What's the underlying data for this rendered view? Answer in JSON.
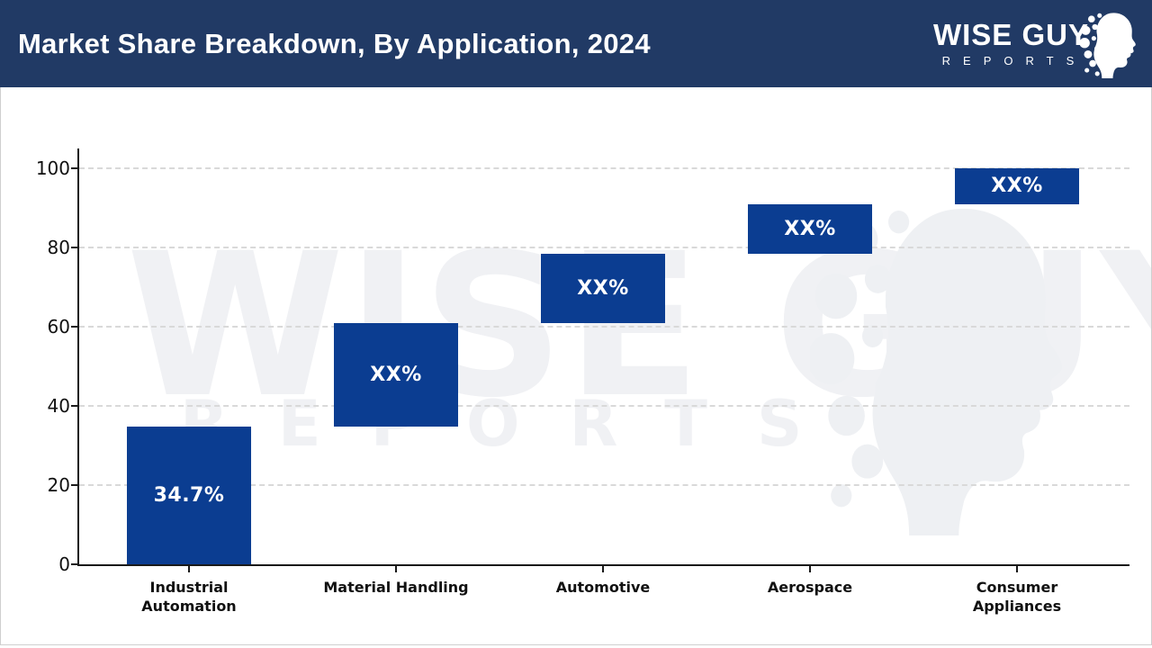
{
  "header": {
    "title": "Market Share Breakdown, By Application, 2024",
    "bg_color": "#213a65",
    "logo": {
      "line1": "WISE GUY",
      "line2": "REPORTS"
    }
  },
  "watermark": {
    "line1": "WISE GUY",
    "line2": "REPORTS"
  },
  "chart_data": {
    "type": "bar",
    "subtype": "floating-waterfall",
    "title": "Market Share Breakdown, By Application, 2024",
    "categories": [
      [
        "Industrial",
        "Automation"
      ],
      [
        "Material Handling"
      ],
      [
        "Automotive"
      ],
      [
        "Aerospace"
      ],
      [
        "Consumer",
        "Appliances"
      ]
    ],
    "segments": [
      {
        "category": "Industrial Automation",
        "start": 0,
        "end": 34.7,
        "label": "34.7%"
      },
      {
        "category": "Material Handling",
        "start": 34.7,
        "end": 61.0,
        "label": "XX%"
      },
      {
        "category": "Automotive",
        "start": 61.0,
        "end": 78.3,
        "label": "XX%"
      },
      {
        "category": "Aerospace",
        "start": 78.3,
        "end": 91.0,
        "label": "XX%"
      },
      {
        "category": "Consumer Appliances",
        "start": 91.0,
        "end": 100.0,
        "label": "XX%"
      }
    ],
    "yticks": [
      0,
      20,
      40,
      60,
      80,
      100
    ],
    "ylim": [
      0,
      105
    ],
    "grid": "horizontal-dashed",
    "legend": "none",
    "bar_color": "#0b3d91",
    "bar_label_color": "#ffffff",
    "axis_color": "#1a1a1a",
    "gridline_color": "#d9d9d9"
  }
}
